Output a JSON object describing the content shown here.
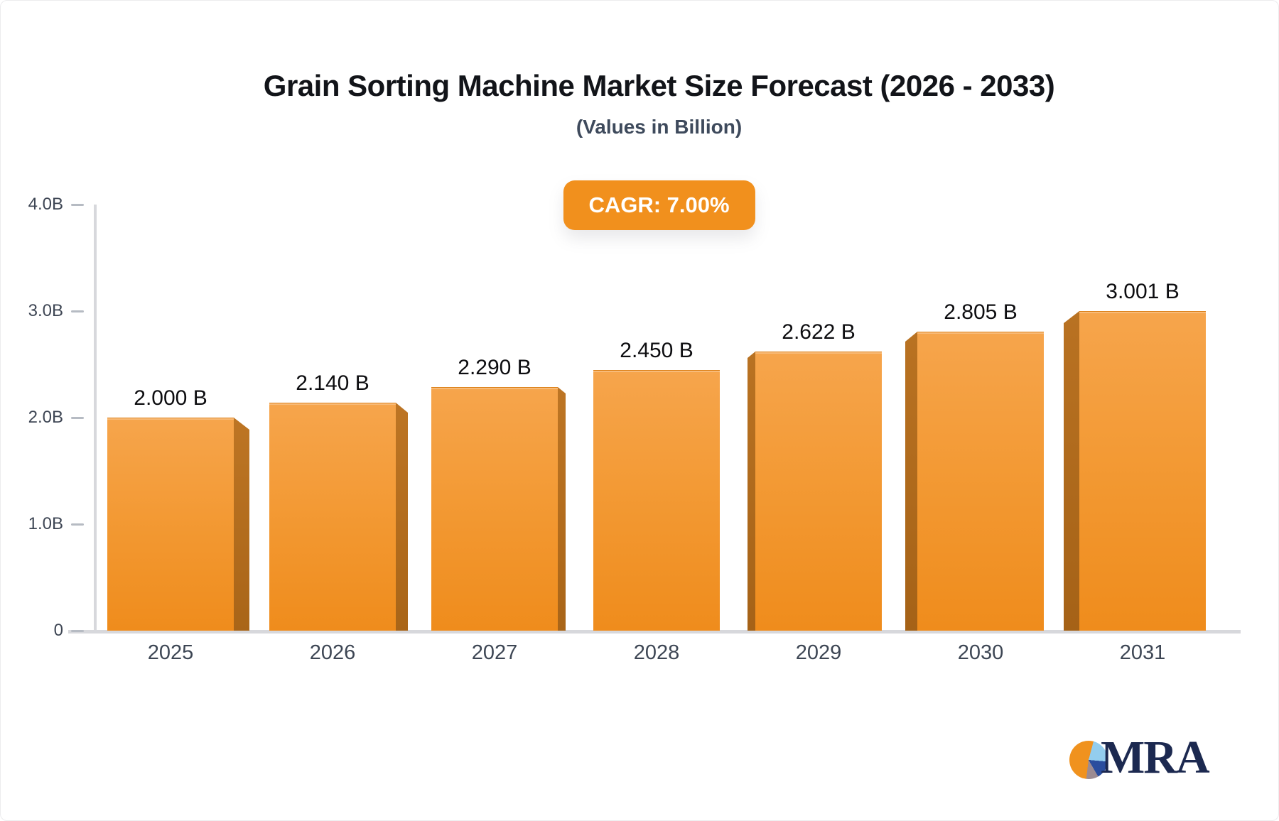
{
  "chart_data": {
    "type": "bar",
    "title": "Grain Sorting Machine Market Size Forecast (2026 - 2033)",
    "subtitle": "(Values in Billion)",
    "cagr_badge": "CAGR: 7.00%",
    "categories": [
      "2025",
      "2026",
      "2027",
      "2028",
      "2029",
      "2030",
      "2031"
    ],
    "values": [
      2.0,
      2.14,
      2.29,
      2.45,
      2.622,
      2.805,
      3.001
    ],
    "value_labels": [
      "2.000 B",
      "2.140 B",
      "2.290 B",
      "2.450 B",
      "2.622 B",
      "2.805 B",
      "3.001 B"
    ],
    "unit": "Billion",
    "ylim": [
      0,
      4
    ],
    "y_tick_labels": [
      "0",
      "1.0B",
      "2.0B",
      "3.0B",
      "4.0B"
    ],
    "grid": false,
    "legend": null,
    "style": {
      "bar_color_top": "#f6a54c",
      "bar_color_bottom": "#ef8c1c",
      "bar_side_color": "#b06c1e",
      "badge_color": "#f1901d",
      "axis_color": "#d7d8dc",
      "tick_color": "#b6bbc3",
      "axis_label_color": "#3e4654",
      "value_label_color": "#0d0d10",
      "title_color": "#121419",
      "subtitle_color": "#3e4a5c"
    }
  },
  "logo": {
    "text": "MRA",
    "pie_colors": [
      "#f0921e",
      "#93cdee",
      "#2a4d9e",
      "#9c8b92"
    ]
  }
}
